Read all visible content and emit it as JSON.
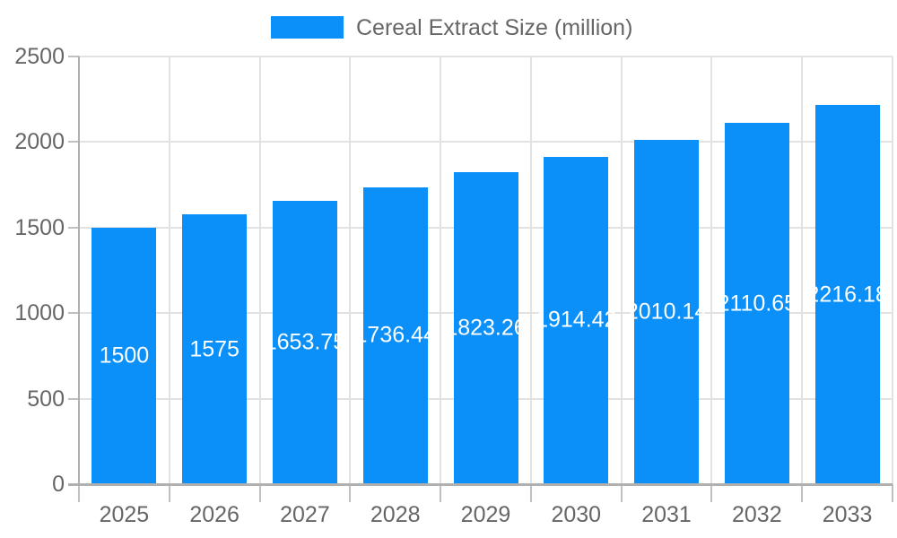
{
  "chart_data": {
    "type": "bar",
    "title": "Cereal Extract Size (million)",
    "categories": [
      "2025",
      "2026",
      "2027",
      "2028",
      "2029",
      "2030",
      "2031",
      "2032",
      "2033"
    ],
    "values": [
      1500,
      1575,
      1653.75,
      1736.44,
      1823.26,
      1914.42,
      2010.14,
      2110.65,
      2216.18
    ],
    "bar_labels": [
      "1500",
      "1575",
      "1653.75",
      "1736.44",
      "1823.26",
      "1914.42",
      "2010.14",
      "2110.65",
      "2216.18"
    ],
    "xlabel": "",
    "ylabel": "",
    "ylim": [
      0,
      2500
    ],
    "y_ticks": [
      "0",
      "500",
      "1000",
      "1500",
      "2000",
      "2500"
    ],
    "grid": true,
    "legend_position": "top"
  },
  "colors": {
    "bar": "#0a90f8",
    "grid": "#e2e2e2",
    "axis": "#b0b0b0",
    "tick": "#c0c0c0",
    "label_text": "#666666",
    "bar_label_text": "#ffffff",
    "background": "#ffffff"
  }
}
